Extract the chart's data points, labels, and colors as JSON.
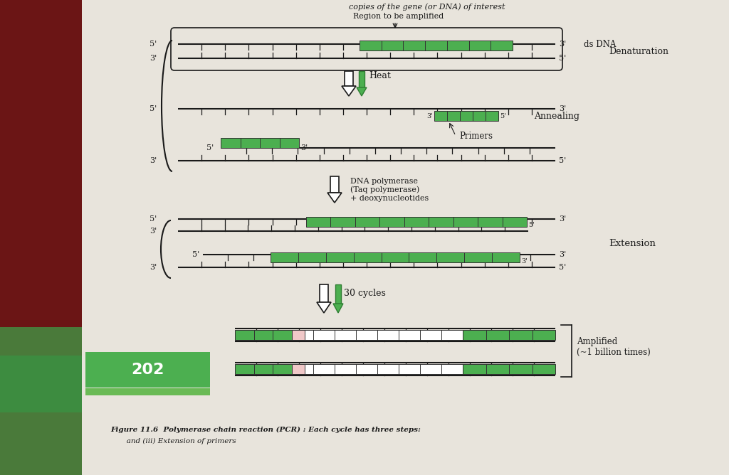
{
  "bg_left_color": "#8B2020",
  "bg_right_color": "#6B8E6B",
  "paper_color": "#E8E4DC",
  "green_fill": "#4CAF50",
  "green_dark": "#2E7D32",
  "line_color": "#1a1a1a",
  "white_fill": "#FFFFFF",
  "cream_fill": "#F0EDE6",
  "title_top": "copies of the gene (or DNA) of interest",
  "region_label": "Region to be amplified",
  "label_dsdna": "ds DNA",
  "label_denaturation": "Denaturation",
  "label_annealing": "Annealing",
  "label_primers": "Primers",
  "label_extension": "Extension",
  "label_heat": "Heat",
  "label_dna_poly": "DNA polymerase\n(Taq polymerase)\n+ deoxynucleotides",
  "label_30cycles": "30 cycles",
  "label_amplified": "Amplified\n(~1 billion times)",
  "label_202": "202",
  "label_figure": "Figure 11.6  Polymerase chain reaction (PCR) : Each cycle has three steps:",
  "label_figure2": "       and (iii) Extension of primers"
}
